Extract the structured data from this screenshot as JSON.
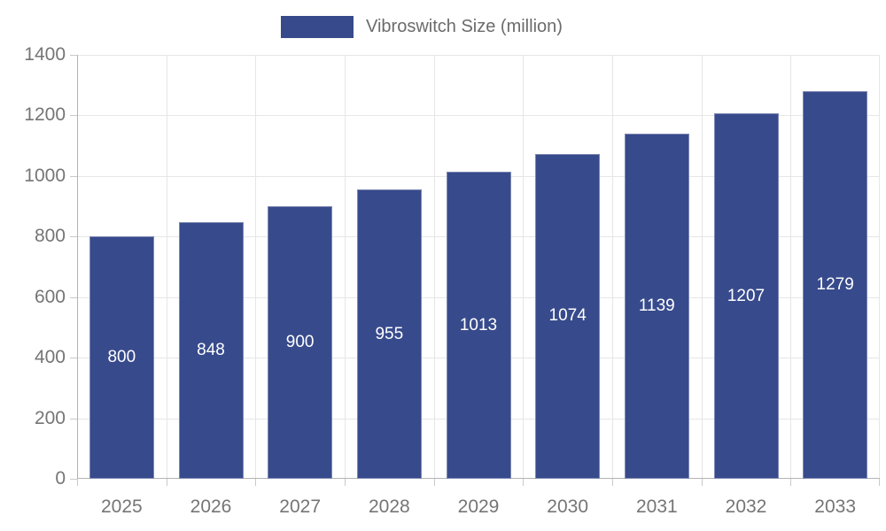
{
  "legend": {
    "label": "Vibroswitch Size (million)"
  },
  "chart_data": {
    "type": "bar",
    "title": "",
    "categories": [
      "2025",
      "2026",
      "2027",
      "2028",
      "2029",
      "2030",
      "2031",
      "2032",
      "2033"
    ],
    "series": [
      {
        "name": "Vibroswitch Size (million)",
        "values": [
          800,
          848,
          900,
          955,
          1013,
          1074,
          1139,
          1207,
          1279
        ]
      }
    ],
    "bar_labels": [
      800,
      848,
      900,
      955,
      1013,
      1074,
      1139,
      1207,
      1279
    ],
    "xlabel": "",
    "ylabel": "",
    "ylim": [
      0,
      1400
    ],
    "ytick_step": 200,
    "yticks": [
      0,
      200,
      400,
      600,
      800,
      1000,
      1200,
      1400
    ],
    "grid": true,
    "legend_position": "top"
  },
  "colors": {
    "bar_fill": "#374a8c",
    "bar_border": "#7e89b2",
    "grid_line": "#e6e6e6",
    "axis_line": "#b3b3b3",
    "tick_mark": "#c9c9c9",
    "tick_label": "#757575",
    "legend_text": "#6b6b6b",
    "bar_label_text": "#ffffff",
    "background": "#ffffff"
  }
}
